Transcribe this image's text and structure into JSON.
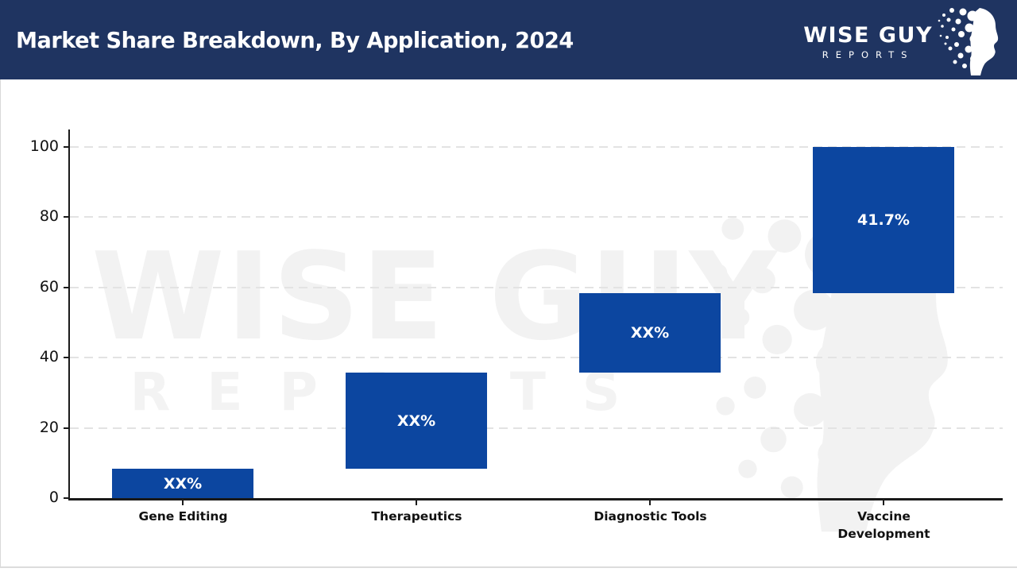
{
  "header": {
    "title": "Market Share Breakdown, By Application, 2024",
    "logo": {
      "line1": "WISE GUY",
      "line2": "REPORTS"
    },
    "bg_color": "#1f3461"
  },
  "watermark": {
    "line1": "WISE GUY",
    "line2": "REPORTS"
  },
  "chart_data": {
    "type": "bar",
    "subtype": "waterfall",
    "title": "Market Share Breakdown, By Application, 2024",
    "categories": [
      "Gene Editing",
      "Therapeutics",
      "Diagnostic Tools",
      "Vaccine Development"
    ],
    "segments": [
      {
        "category": "Gene Editing",
        "start": 0,
        "end": 8.3,
        "value": 8.3,
        "label": "XX%"
      },
      {
        "category": "Therapeutics",
        "start": 8.3,
        "end": 35.8,
        "value": 27.5,
        "label": "XX%"
      },
      {
        "category": "Diagnostic Tools",
        "start": 35.8,
        "end": 58.3,
        "value": 22.5,
        "label": "XX%"
      },
      {
        "category": "Vaccine Development",
        "start": 58.3,
        "end": 100,
        "value": 41.7,
        "label": "41.7%"
      }
    ],
    "yticks": [
      0,
      20,
      40,
      60,
      80,
      100
    ],
    "ylim": [
      0,
      105
    ],
    "xlabel": "",
    "ylabel": "",
    "grid": "dashed-horizontal",
    "legend": "none",
    "bar_color": "#0c46a0",
    "bar_label_color": "#ffffff"
  }
}
